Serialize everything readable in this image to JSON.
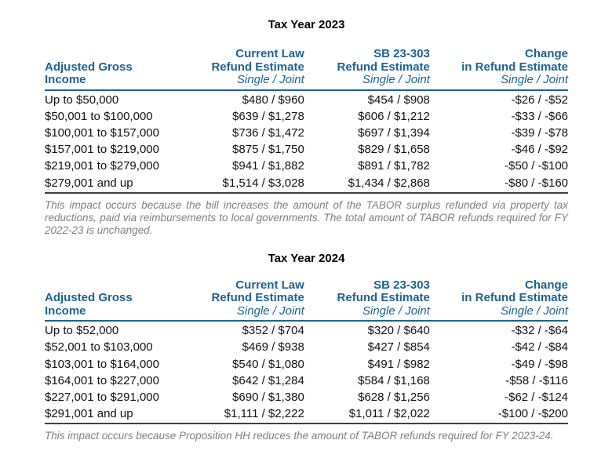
{
  "colors": {
    "header_blue": "#1b6391",
    "table_bottom_rule": "#404040",
    "footnote_gray": "#7f7f7f",
    "title_black": "#000000"
  },
  "tables": [
    {
      "title": "Tax Year 2023",
      "headers": [
        {
          "top": "Adjusted Gross",
          "bottom": "Income",
          "sub": ""
        },
        {
          "top": "Current Law",
          "bottom": "Refund Estimate",
          "sub": "Single / Joint"
        },
        {
          "top": "SB 23-303",
          "bottom": "Refund Estimate",
          "sub": "Single / Joint"
        },
        {
          "top": "Change",
          "bottom": "in Refund Estimate",
          "sub": "Single / Joint"
        }
      ],
      "rows": [
        {
          "agi": "Up to $50,000",
          "current_law": "$480 / $960",
          "sb23_303": "$454 / $908",
          "change": "-$26 / -$52"
        },
        {
          "agi": "$50,001 to $100,000",
          "current_law": "$639 / $1,278",
          "sb23_303": "$606 / $1,212",
          "change": "-$33 / -$66"
        },
        {
          "agi": "$100,001 to $157,000",
          "current_law": "$736 / $1,472",
          "sb23_303": "$697 / $1,394",
          "change": "-$39 / -$78"
        },
        {
          "agi": "$157,001 to $219,000",
          "current_law": "$875 / $1,750",
          "sb23_303": "$829 / $1,658",
          "change": "-$46 / -$92"
        },
        {
          "agi": "$219,001 to $279,000",
          "current_law": "$941 / $1,882",
          "sb23_303": "$891 / $1,782",
          "change": "-$50 / -$100"
        },
        {
          "agi": "$279,001 and up",
          "current_law": "$1,514 / $3,028",
          "sb23_303": "$1,434 / $2,868",
          "change": "-$80 / -$160"
        }
      ],
      "footnote": "This impact occurs because the bill increases the amount of the TABOR surplus refunded via property tax reductions, paid via reimbursements to local governments.  The total amount of TABOR refunds required for FY 2022-23 is unchanged."
    },
    {
      "title": "Tax Year 2024",
      "headers": [
        {
          "top": "Adjusted Gross",
          "bottom": "Income",
          "sub": ""
        },
        {
          "top": "Current Law",
          "bottom": "Refund Estimate",
          "sub": "Single / Joint"
        },
        {
          "top": "SB 23-303",
          "bottom": "Refund Estimate",
          "sub": "Single / Joint"
        },
        {
          "top": "Change",
          "bottom": "in Refund Estimate",
          "sub": "Single / Joint"
        }
      ],
      "rows": [
        {
          "agi": "Up to $52,000",
          "current_law": "$352 / $704",
          "sb23_303": "$320 / $640",
          "change": "-$32 / -$64"
        },
        {
          "agi": "$52,001 to $103,000",
          "current_law": "$469 / $938",
          "sb23_303": "$427 / $854",
          "change": "-$42 / -$84"
        },
        {
          "agi": "$103,001 to $164,000",
          "current_law": "$540 / $1,080",
          "sb23_303": "$491 / $982",
          "change": "-$49 / -$98"
        },
        {
          "agi": "$164,001 to $227,000",
          "current_law": "$642 / $1,284",
          "sb23_303": "$584 / $1,168",
          "change": "-$58 / -$116"
        },
        {
          "agi": "$227,001 to $291,000",
          "current_law": "$690 / $1,380",
          "sb23_303": "$628 / $1,256",
          "change": "-$62 / -$124"
        },
        {
          "agi": "$291,001 and up",
          "current_law": "$1,111 / $2,222",
          "sb23_303": "$1,011 / $2,022",
          "change": "-$100 / -$200"
        }
      ],
      "footnote": "This impact occurs because Proposition HH reduces the amount of TABOR refunds required for FY 2023-24."
    }
  ]
}
